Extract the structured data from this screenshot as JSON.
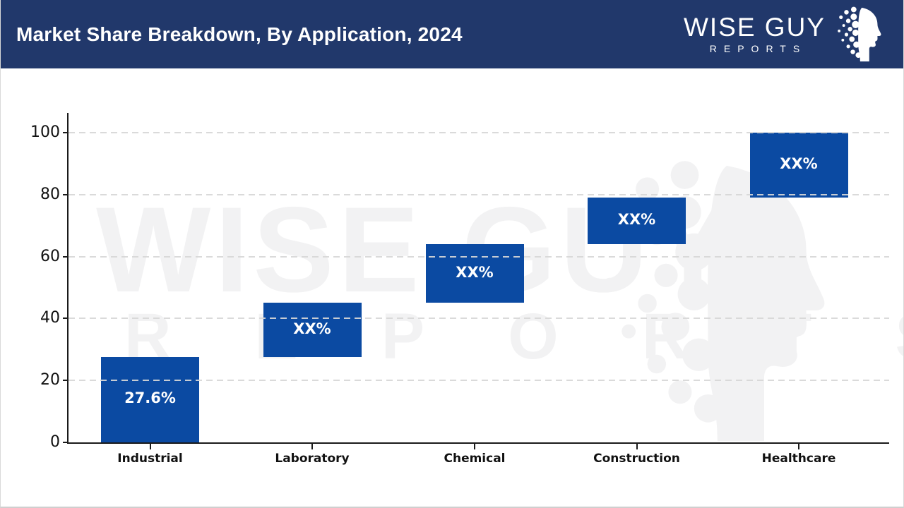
{
  "header": {
    "title": "Market Share Breakdown, By Application, 2024",
    "bg_color": "#21386b",
    "logo": {
      "line1": "WISE GUY",
      "line2": "REPORTS"
    }
  },
  "watermark": {
    "line1": "WISE GUY",
    "line2": "REPORTS",
    "color": "#f2f2f3"
  },
  "chart_data": {
    "type": "bar",
    "subtype": "waterfall-floating-bars",
    "title": "Market Share Breakdown, By Application, 2024",
    "categories": [
      "Industrial",
      "Laboratory",
      "Chemical",
      "Construction",
      "Healthcare"
    ],
    "segments": [
      {
        "category": "Industrial",
        "start": 0,
        "end": 27.6,
        "label": "27.6%"
      },
      {
        "category": "Laboratory",
        "start": 27.6,
        "end": 45,
        "label": "XX%"
      },
      {
        "category": "Chemical",
        "start": 45,
        "end": 64,
        "label": "XX%"
      },
      {
        "category": "Construction",
        "start": 64,
        "end": 79,
        "label": "XX%"
      },
      {
        "category": "Healthcare",
        "start": 79,
        "end": 100,
        "label": "XX%"
      }
    ],
    "ylim": [
      0,
      100
    ],
    "yticks": [
      0,
      20,
      40,
      60,
      80,
      100
    ],
    "xlabel": "",
    "ylabel": "",
    "grid": "horizontal dashed, drawn over bars",
    "legend": "none",
    "bar_color": "#0b4aa2",
    "bar_label_color": "#ffffff",
    "axis_color": "#1a1a1a",
    "gridline_color": "#d7d7d7"
  }
}
